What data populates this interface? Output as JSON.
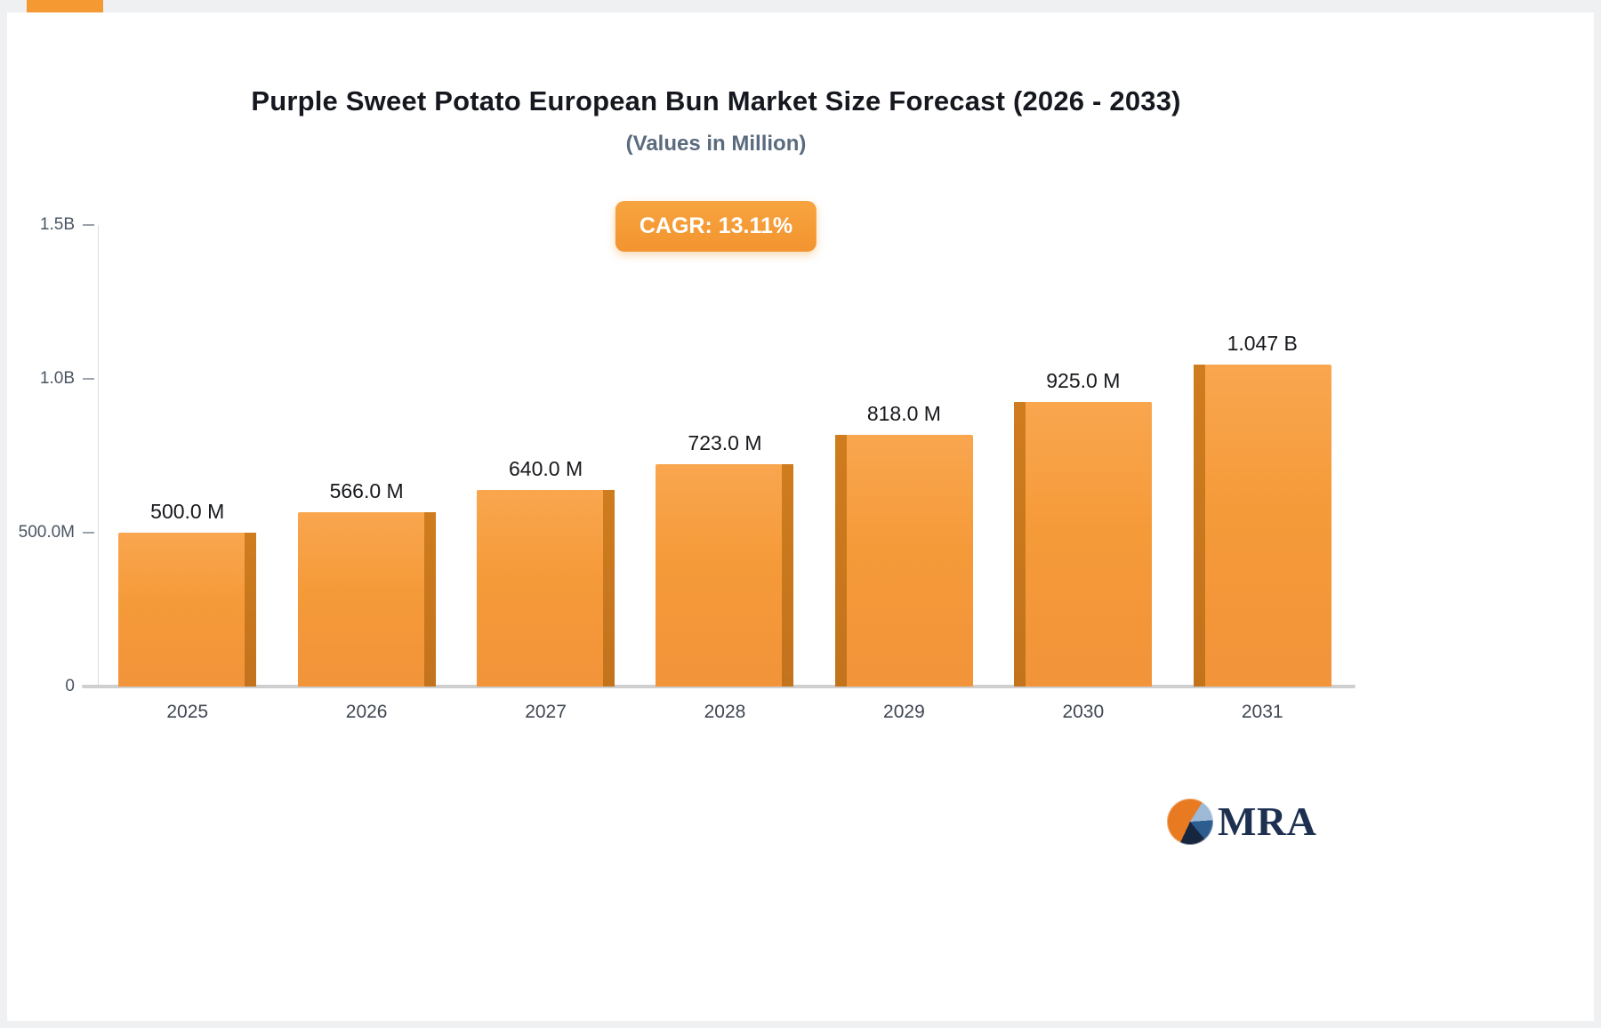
{
  "page": {
    "title": "Purple Sweet Potato European Bun Market Size Forecast (2026 - 2033)",
    "subtitle": "(Values in Million)",
    "cagr_label": "CAGR: 13.11%"
  },
  "logo": {
    "text": "MRA"
  },
  "chart_data": {
    "type": "bar",
    "title": "Purple Sweet Potato European Bun Market Size Forecast (2026 - 2033)",
    "subtitle": "(Values in Million)",
    "annotation": "CAGR: 13.11%",
    "categories": [
      "2025",
      "2026",
      "2027",
      "2028",
      "2029",
      "2030",
      "2031"
    ],
    "values_in_millions": [
      500,
      566,
      640,
      723,
      818,
      925,
      1047
    ],
    "value_labels": [
      "500.0 M",
      "566.0 M",
      "640.0 M",
      "723.0 M",
      "818.0 M",
      "925.0 M",
      "1.047 B"
    ],
    "xlabel": "",
    "ylabel": "",
    "ylim_millions": [
      0,
      1500
    ],
    "y_ticks": [
      {
        "value": 1500,
        "label": "1.5B"
      },
      {
        "value": 1000,
        "label": "1.0B"
      },
      {
        "value": 500,
        "label": "500.0M"
      },
      {
        "value": 0,
        "label": "0"
      }
    ],
    "grid": false,
    "legend": false,
    "bar_color": "#f59a39",
    "bar_side_shade_color": "#c97a1e",
    "accent_color": "#f59a33"
  }
}
